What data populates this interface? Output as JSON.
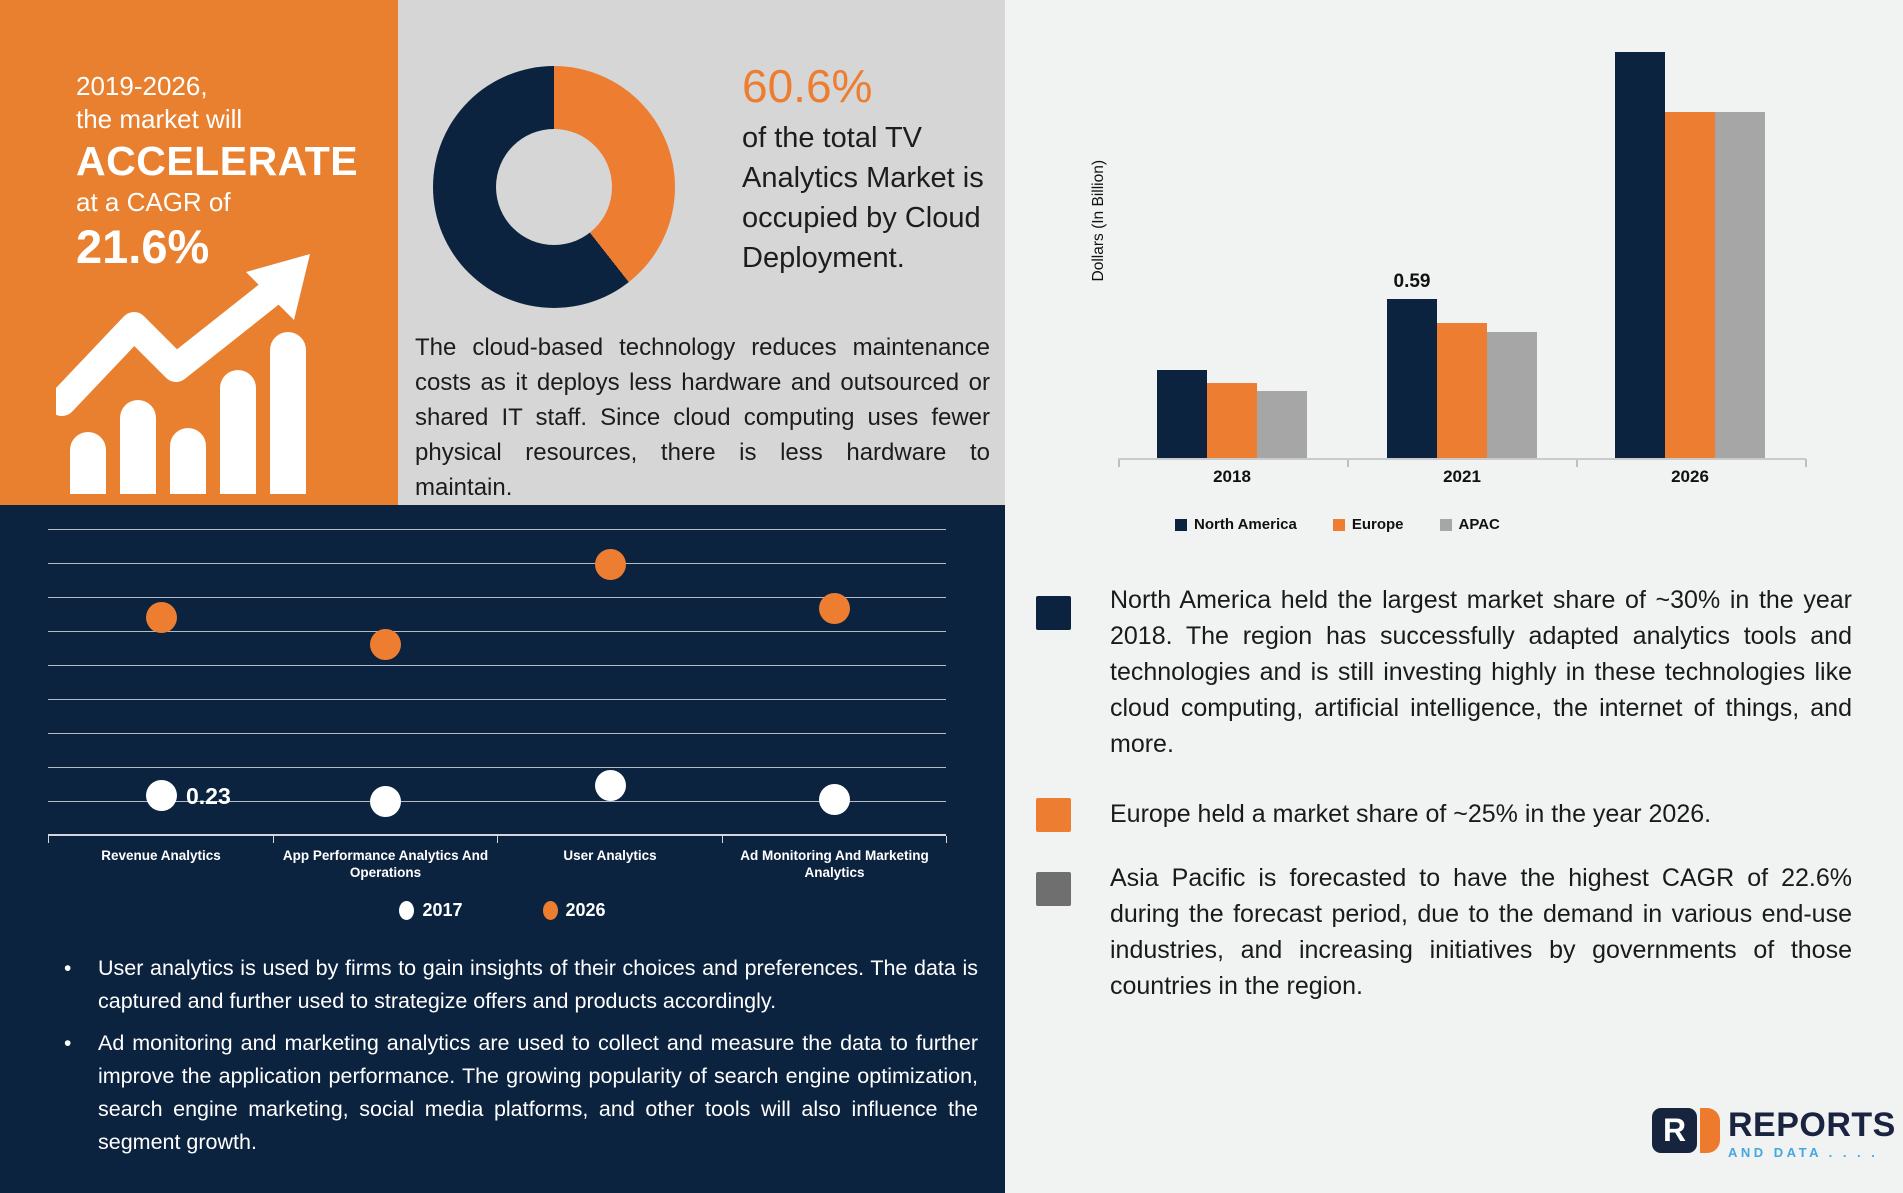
{
  "colors": {
    "orange": "#ED7D31",
    "navy": "#0C2340",
    "gray_box": "#D6D6D6",
    "right_bg": "#F1F2F2",
    "bar_gray": "#A6A6A6",
    "bullet_gray": "#6F6F6F",
    "logo_blue": "#45A7E0"
  },
  "accelerate_box": {
    "line1": "2019-2026,",
    "line2": "the market will",
    "line3": "ACCELERATE",
    "line4": "at a CAGR of",
    "line5": "21.6%"
  },
  "cloud_box": {
    "stat": "60.6%",
    "caption": "of the total TV Analytics Market is occupied by Cloud Deployment.",
    "paragraph": "The cloud-based technology reduces maintenance costs as it deploys less hardware and outsourced or shared IT staff. Since cloud computing uses fewer physical resources, there is less hardware to maintain.",
    "donut": {
      "cloud_pct": 60.6,
      "other_pct": 39.4
    }
  },
  "chart_data": [
    {
      "type": "bar",
      "title": "",
      "ylabel": "Dollars (In Billion)",
      "categories": [
        "2018",
        "2021",
        "2026"
      ],
      "series": [
        {
          "name": "North America",
          "color": "#0C2340",
          "values": [
            0.33,
            0.59,
            1.5
          ],
          "labels": [
            "",
            "0.59",
            ""
          ]
        },
        {
          "name": "Europe",
          "color": "#ED7D31",
          "values": [
            0.28,
            0.5,
            1.28
          ],
          "labels": [
            "",
            "",
            ""
          ]
        },
        {
          "name": "APAC",
          "color": "#A6A6A6",
          "values": [
            0.25,
            0.47,
            1.28
          ],
          "labels": [
            "",
            "",
            ""
          ]
        }
      ],
      "ylim": [
        0,
        1.7
      ],
      "grid": false,
      "legend_position": "bottom"
    },
    {
      "type": "scatter",
      "title": "",
      "categories": [
        "Revenue Analytics",
        "App Performance Analytics And Operations",
        "User Analytics",
        "Ad Monitoring And Marketing Analytics"
      ],
      "series": [
        {
          "name": "2017",
          "color": "#FFFFFF",
          "values": [
            0.23,
            0.2,
            0.29,
            0.21
          ],
          "labels": [
            "0.23",
            "",
            "",
            ""
          ]
        },
        {
          "name": "2026",
          "color": "#ED7D31",
          "values": [
            1.28,
            1.12,
            1.59,
            1.33
          ],
          "labels": [
            "",
            "",
            "",
            ""
          ]
        }
      ],
      "ylim": [
        0,
        1.9
      ],
      "gridline_step": 0.2,
      "grid": true,
      "legend_position": "bottom"
    }
  ],
  "region_notes": [
    {
      "marker_color": "#0C2340",
      "text": "North America held the largest market share of ~30% in the year 2018. The region has successfully adapted analytics tools and technologies and is still investing highly in these technologies like cloud computing, artificial intelligence, the internet of things, and more."
    },
    {
      "marker_color": "#ED7D31",
      "text": "Europe held a market share of ~25% in the year 2026."
    },
    {
      "marker_color": "#6F6F6F",
      "text": "Asia Pacific is forecasted to have the highest CAGR of 22.6% during the forecast period, due to the demand in various end-use industries, and increasing initiatives by governments of those countries in the region."
    }
  ],
  "segment_notes": [
    "User analytics is used by firms to gain insights of their choices and preferences. The data is captured and further used to strategize offers and products accordingly.",
    "Ad monitoring and marketing analytics are used to collect and measure the data to further improve the application performance. The growing popularity of search engine optimization, search engine marketing, social media platforms, and other tools will also influence the segment growth."
  ],
  "logo": {
    "mark_letter": "R",
    "name": "REPORTS",
    "tagline": "AND DATA",
    "dots": ". . . ."
  },
  "icons": {
    "growth-chart-arrow-icon": "white bar chart with rising zigzag arrow",
    "rd-monogram-icon": "navy R block with orange D capsule",
    "donut-chart": "two-segment ring, orange and navy"
  }
}
